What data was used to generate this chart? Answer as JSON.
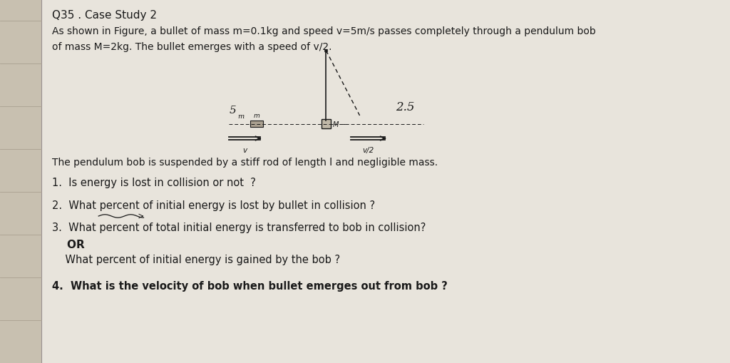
{
  "title": "Q35 . Case Study 2",
  "intro_line1": "As shown in Figure, a bullet of mass m=0.1kg and speed v=5m/s passes completely through a pendulum bob",
  "intro_line2": "of mass M=2kg. The bullet emerges with a speed of v/2.",
  "pendulum_note": "The pendulum bob is suspended by a stiff rod of length l and negligible mass.",
  "q1": "1.  Is energy is lost in collision or not  ?",
  "q2": "2.  What percent of initial energy is lost by bullet in collision ?",
  "q3": "3.  What percent of total initial energy is transferred to bob in collision?",
  "q3or": "    OR",
  "q3b": "    What percent of initial energy is gained by the bob ?",
  "q4": "4.  What is the velocity of bob when bullet emerges out from bob ?",
  "bg_color": "#e8e4dc",
  "paper_color": "#f0ede6",
  "text_color": "#1a1a1a",
  "margin_color": "#c8c0b0",
  "title_fontsize": 11,
  "body_fontsize": 10,
  "question_fontsize": 10.5
}
